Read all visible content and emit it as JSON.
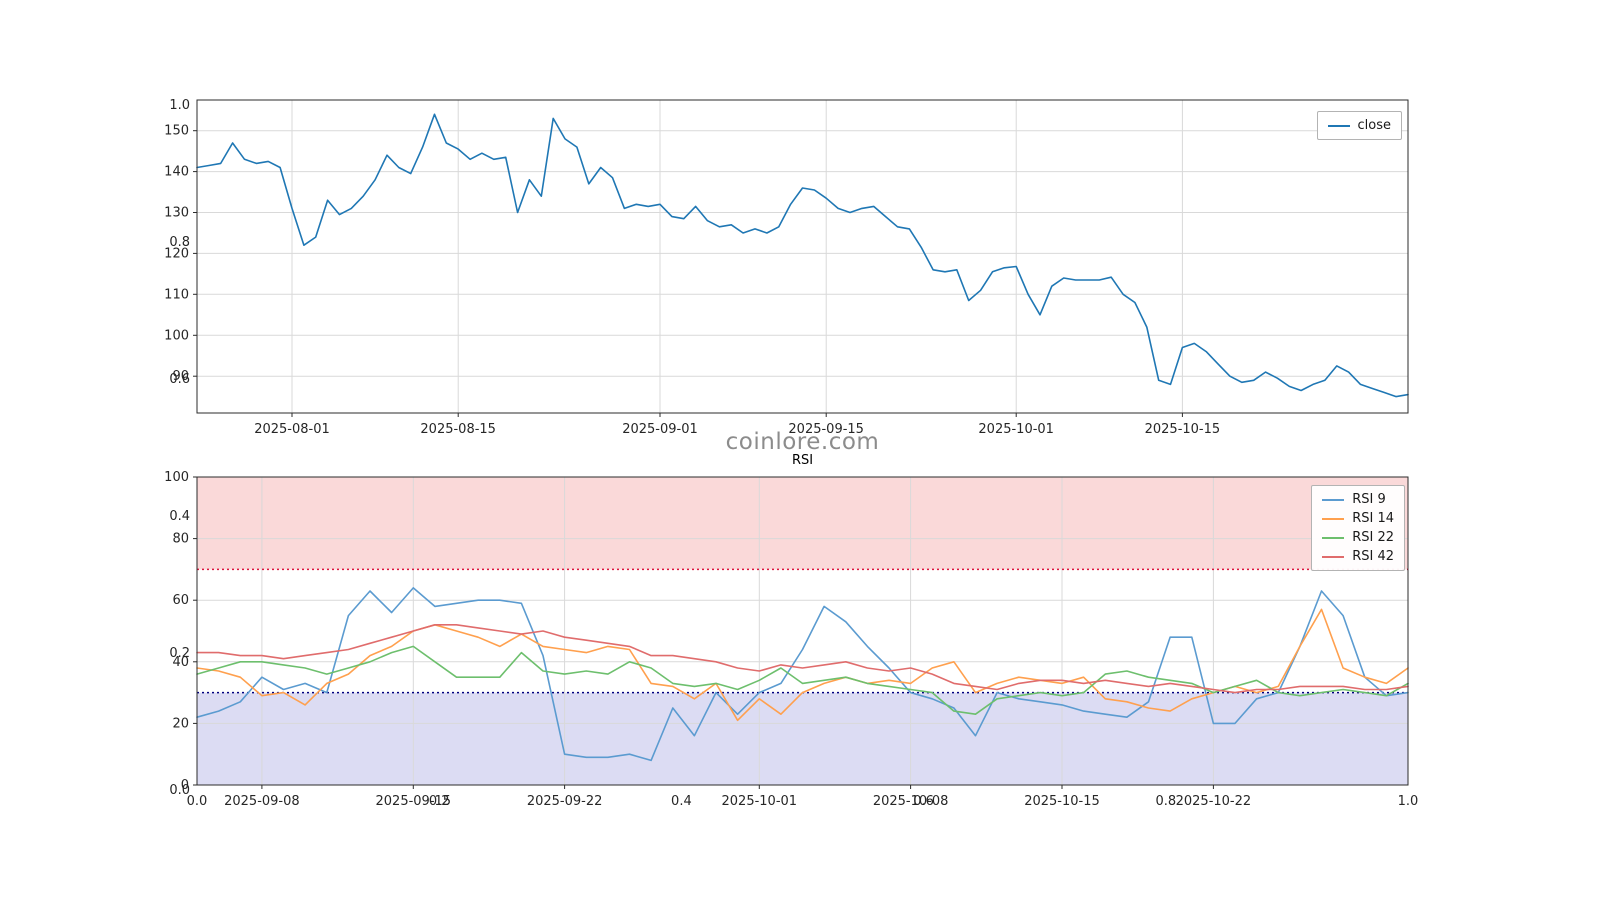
{
  "watermark": "coinlore.com",
  "figure_axis": {
    "x_labels": [
      "0.0",
      "0.2",
      "0.4",
      "0.6",
      "0.8",
      "1.0"
    ],
    "y_labels": [
      "1.0",
      "0.8",
      "0.6",
      "0.4",
      "0.2",
      "0.0"
    ]
  },
  "chart_data": [
    {
      "type": "line",
      "name": "price-chart",
      "title": "",
      "legend_position": "upper right",
      "grid": true,
      "x_domain": [
        0,
        102
      ],
      "ylim": [
        81,
        157.5
      ],
      "y_ticks": [
        90,
        100,
        110,
        120,
        130,
        140,
        150
      ],
      "x_ticks": [
        {
          "pos": 8,
          "label": "2025-08-01"
        },
        {
          "pos": 22,
          "label": "2025-08-15"
        },
        {
          "pos": 39,
          "label": "2025-09-01"
        },
        {
          "pos": 53,
          "label": "2025-09-15"
        },
        {
          "pos": 69,
          "label": "2025-10-01"
        },
        {
          "pos": 83,
          "label": "2025-10-15"
        }
      ],
      "series": [
        {
          "name": "close",
          "color": "#1f77b4",
          "values": [
            141,
            141.5,
            142,
            147,
            143,
            142,
            142.5,
            141,
            131,
            122,
            124,
            133,
            129.5,
            131,
            134,
            138,
            144,
            141,
            139.5,
            146,
            154,
            147,
            145.5,
            143,
            144.5,
            143,
            143.5,
            130,
            138,
            134,
            153,
            148,
            146,
            137,
            141,
            138.5,
            131,
            132,
            131.5,
            132,
            129,
            128.5,
            131.5,
            128,
            126.5,
            127,
            125,
            126,
            125,
            126.5,
            132,
            136,
            135.5,
            133.5,
            131,
            130,
            131,
            131.5,
            129,
            126.5,
            126,
            121.5,
            116,
            115.5,
            116,
            108.5,
            111,
            115.5,
            116.5,
            116.8,
            110,
            105,
            112,
            114,
            113.5,
            113.5,
            113.5,
            114.2,
            110,
            108,
            102,
            89,
            88,
            97,
            98,
            96,
            93,
            90,
            88.5,
            89,
            91,
            89.5,
            87.5,
            86.5,
            88,
            89,
            92.5,
            91,
            88,
            87,
            86,
            85,
            85.5
          ]
        }
      ]
    },
    {
      "type": "line",
      "name": "rsi-chart",
      "title": "RSI",
      "legend_position": "upper right",
      "grid": true,
      "x_domain": [
        0,
        56
      ],
      "ylim": [
        0,
        100
      ],
      "y_ticks": [
        0,
        20,
        40,
        60,
        80,
        100
      ],
      "x_ticks": [
        {
          "pos": 3,
          "label": "2025-09-08"
        },
        {
          "pos": 10,
          "label": "2025-09-15"
        },
        {
          "pos": 17,
          "label": "2025-09-22"
        },
        {
          "pos": 26,
          "label": "2025-10-01"
        },
        {
          "pos": 33,
          "label": "2025-10-08"
        },
        {
          "pos": 40,
          "label": "2025-10-15"
        },
        {
          "pos": 47,
          "label": "2025-10-22"
        }
      ],
      "bands": [
        {
          "name": "overbought-band",
          "from": 70,
          "to": 100,
          "color": "#fad9d9"
        },
        {
          "name": "oversold-band",
          "from": 0,
          "to": 30,
          "color": "#dcdcf3"
        }
      ],
      "hlines": [
        {
          "name": "overbought-threshold",
          "y": 70,
          "color": "#dc143c"
        },
        {
          "name": "oversold-threshold",
          "y": 30,
          "color": "#000080"
        }
      ],
      "series": [
        {
          "name": "RSI 9",
          "color": "#5b9bd0",
          "values": [
            22,
            24,
            27,
            35,
            31,
            33,
            30,
            55,
            63,
            56,
            64,
            58,
            59,
            60,
            60,
            59,
            42,
            10,
            9,
            9,
            10,
            8,
            25,
            16,
            30,
            23,
            30,
            33,
            44,
            58,
            53,
            45,
            38,
            30,
            28,
            25,
            16,
            30,
            28,
            27,
            26,
            24,
            23,
            22,
            27,
            48,
            48,
            20,
            20,
            28,
            30,
            45,
            63,
            55,
            35,
            29,
            30
          ]
        },
        {
          "name": "RSI 14",
          "color": "#ffa04e",
          "values": [
            38,
            37,
            35,
            29,
            30,
            26,
            33,
            36,
            42,
            45,
            50,
            52,
            50,
            48,
            45,
            49,
            45,
            44,
            43,
            45,
            44,
            33,
            32,
            28,
            33,
            21,
            28,
            23,
            30,
            33,
            35,
            33,
            34,
            33,
            38,
            40,
            30,
            33,
            35,
            34,
            33,
            35,
            28,
            27,
            25,
            24,
            28,
            30,
            32,
            30,
            32,
            45,
            57,
            38,
            35,
            33,
            38
          ]
        },
        {
          "name": "RSI 22",
          "color": "#6dbf6d",
          "values": [
            36,
            38,
            40,
            40,
            39,
            38,
            36,
            38,
            40,
            43,
            45,
            40,
            35,
            35,
            35,
            43,
            37,
            36,
            37,
            36,
            40,
            38,
            33,
            32,
            33,
            31,
            34,
            38,
            33,
            34,
            35,
            33,
            32,
            31,
            30,
            24,
            23,
            28,
            29,
            30,
            29,
            30,
            36,
            37,
            35,
            34,
            33,
            30,
            32,
            34,
            30,
            29,
            30,
            31,
            30,
            29,
            33
          ]
        },
        {
          "name": "RSI 42",
          "color": "#e06c6c",
          "values": [
            43,
            43,
            42,
            42,
            41,
            42,
            43,
            44,
            46,
            48,
            50,
            52,
            52,
            51,
            50,
            49,
            50,
            48,
            47,
            46,
            45,
            42,
            42,
            41,
            40,
            38,
            37,
            39,
            38,
            39,
            40,
            38,
            37,
            38,
            36,
            33,
            32,
            31,
            33,
            34,
            34,
            33,
            34,
            33,
            32,
            33,
            32,
            31,
            30,
            31,
            31,
            32,
            32,
            32,
            31,
            31,
            32
          ]
        }
      ]
    }
  ]
}
